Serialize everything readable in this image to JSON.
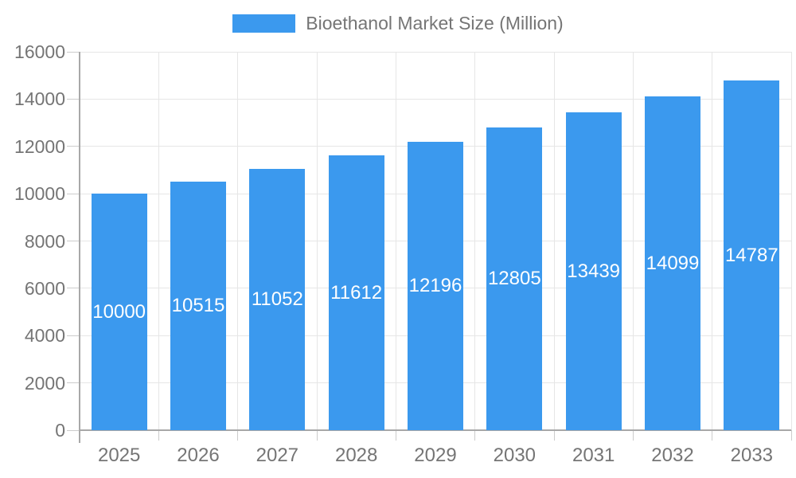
{
  "legend": {
    "label": "Bioethanol Market Size (Million)"
  },
  "colors": {
    "bar": "#3B99EE",
    "grid": "#e6e6e6",
    "tick": "#cccccc",
    "axis": "#a8a8a8",
    "axis_text": "#757575",
    "bar_label_text": "#ffffff",
    "background": "#ffffff"
  },
  "chart_data": {
    "type": "bar",
    "title": "Bioethanol Market Size (Million)",
    "series_name": "Bioethanol Market Size (Million)",
    "categories": [
      "2025",
      "2026",
      "2027",
      "2028",
      "2029",
      "2030",
      "2031",
      "2032",
      "2033"
    ],
    "values": [
      10000,
      10515,
      11052,
      11612,
      12196,
      12805,
      13439,
      14099,
      14787
    ],
    "bar_labels": [
      10000,
      10515,
      11052,
      11612,
      12196,
      12805,
      13439,
      14099,
      14787
    ],
    "xlabel": "",
    "ylabel": "",
    "ylim": [
      0,
      16000
    ],
    "ytick_step": 2000,
    "ytick_labels": [
      "0",
      "2000",
      "4000",
      "6000",
      "8000",
      "10000",
      "12000",
      "14000",
      "16000"
    ],
    "grid": true,
    "legend_position": "top",
    "bar_label_position": "inside-middle"
  }
}
